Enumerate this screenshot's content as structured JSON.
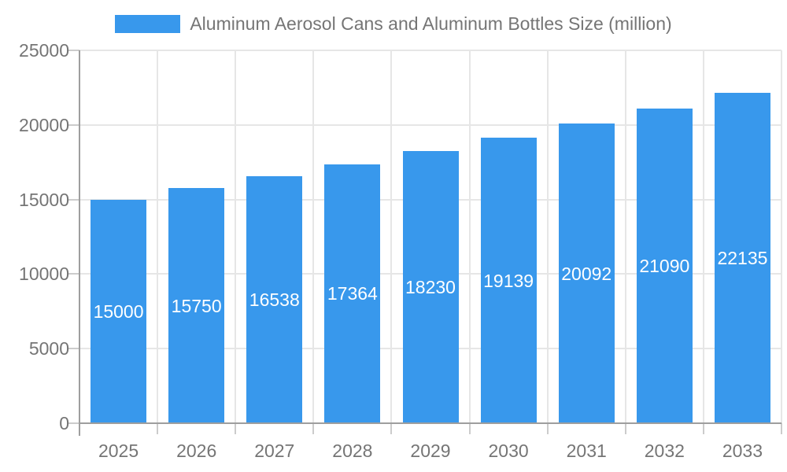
{
  "chart_data": {
    "type": "bar",
    "title": "",
    "legend": "Aluminum Aerosol Cans and Aluminum Bottles Size (million)",
    "legend_position": "top",
    "categories": [
      "2025",
      "2026",
      "2027",
      "2028",
      "2029",
      "2030",
      "2031",
      "2032",
      "2033"
    ],
    "values": [
      15000,
      15750,
      16538,
      17364,
      18230,
      19139,
      20092,
      21090,
      22135
    ],
    "series": [
      {
        "name": "Aluminum Aerosol Cans and Aluminum Bottles Size (million)",
        "values": [
          15000,
          15750,
          16538,
          17364,
          18230,
          19139,
          20092,
          21090,
          22135
        ]
      }
    ],
    "xlabel": "",
    "ylabel": "",
    "ylim": [
      0,
      25000
    ],
    "y_ticks": [
      0,
      5000,
      10000,
      15000,
      20000,
      25000
    ],
    "grid": true,
    "bar_labels_inside": true,
    "colors": {
      "bar": "#3898EC",
      "bar_label": "#FFFFFF",
      "axis_text": "#757575",
      "grid_line": "#E6E6E6",
      "axis_line": "#9E9E9E",
      "tick": "#CCCCCC"
    }
  }
}
